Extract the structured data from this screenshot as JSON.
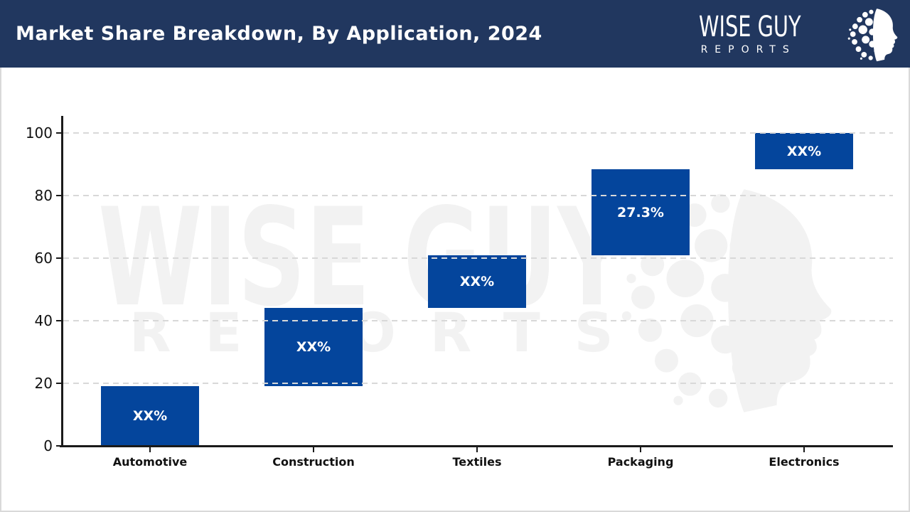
{
  "header": {
    "title": "Market Share Breakdown, By Application, 2024",
    "logo": {
      "wordmark": "WISE GUY",
      "subtext": "REPORTS"
    }
  },
  "watermark": {
    "wordmark": "WISE GUY",
    "subtext": "REPORTS"
  },
  "colors": {
    "header_bg": "#21375f",
    "bar": "#04459c",
    "grid": "#d8d8d8",
    "axis": "#1a1a1a",
    "watermark": "#f2f2f2"
  },
  "chart_data": {
    "type": "bar",
    "subtype": "waterfall",
    "title": "Market Share Breakdown, By Application, 2024",
    "categories": [
      "Automotive",
      "Construction",
      "Textiles",
      "Packaging",
      "Electronics"
    ],
    "bars": [
      {
        "category": "Automotive",
        "start": 0,
        "end": 19.2,
        "label": "XX%"
      },
      {
        "category": "Construction",
        "start": 19.2,
        "end": 44.1,
        "label": "XX%"
      },
      {
        "category": "Textiles",
        "start": 44.1,
        "end": 61.0,
        "label": "XX%"
      },
      {
        "category": "Packaging",
        "start": 61.0,
        "end": 88.3,
        "label": "27.3%"
      },
      {
        "category": "Electronics",
        "start": 88.3,
        "end": 100.0,
        "label": "XX%"
      }
    ],
    "ylim": [
      0,
      100
    ],
    "yticks": [
      0,
      20,
      40,
      60,
      80,
      100
    ],
    "xlabel": "",
    "ylabel": "",
    "grid": "horizontal-dashed",
    "legend": "none"
  }
}
